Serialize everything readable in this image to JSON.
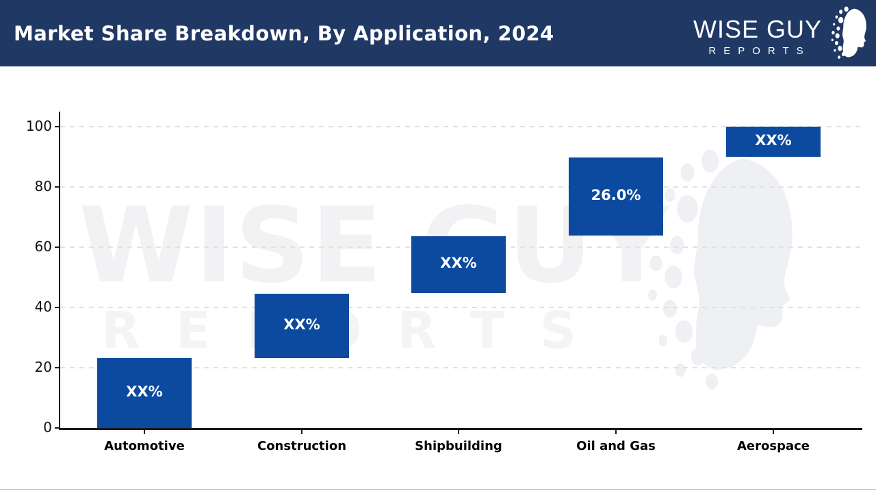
{
  "header": {
    "title": "Market Share Breakdown, By Application, 2024",
    "logo": {
      "line1": "WISE GUY",
      "line2": "REPORTS"
    },
    "bg_color": "#203864"
  },
  "watermark": {
    "line1": "WISE GUY",
    "line2": "REPORTS"
  },
  "chart_data": {
    "type": "bar",
    "subtype": "floating-waterfall",
    "title": "Market Share Breakdown, By Application, 2024",
    "categories": [
      "Automotive",
      "Construction",
      "Shipbuilding",
      "Oil and Gas",
      "Aerospace"
    ],
    "segments": [
      {
        "category": "Automotive",
        "start": 0,
        "end": 23.2,
        "label": "XX%"
      },
      {
        "category": "Construction",
        "start": 23.2,
        "end": 44.6,
        "label": "XX%"
      },
      {
        "category": "Shipbuilding",
        "start": 44.8,
        "end": 63.7,
        "label": "XX%"
      },
      {
        "category": "Oil and Gas",
        "start": 63.9,
        "end": 89.8,
        "label": "26.0%"
      },
      {
        "category": "Aerospace",
        "start": 89.9,
        "end": 100.0,
        "label": "XX%"
      }
    ],
    "y_ticks": [
      0,
      20,
      40,
      60,
      80,
      100
    ],
    "ylim": [
      0,
      105
    ],
    "xlabel": "",
    "ylabel": "",
    "grid": "horizontal-dashed",
    "legend": "none",
    "bar_color": "#0b4a9e",
    "bar_label_color": "#ffffff",
    "grid_color": "#e1e1e1",
    "axis_color": "#1a1a1a"
  }
}
